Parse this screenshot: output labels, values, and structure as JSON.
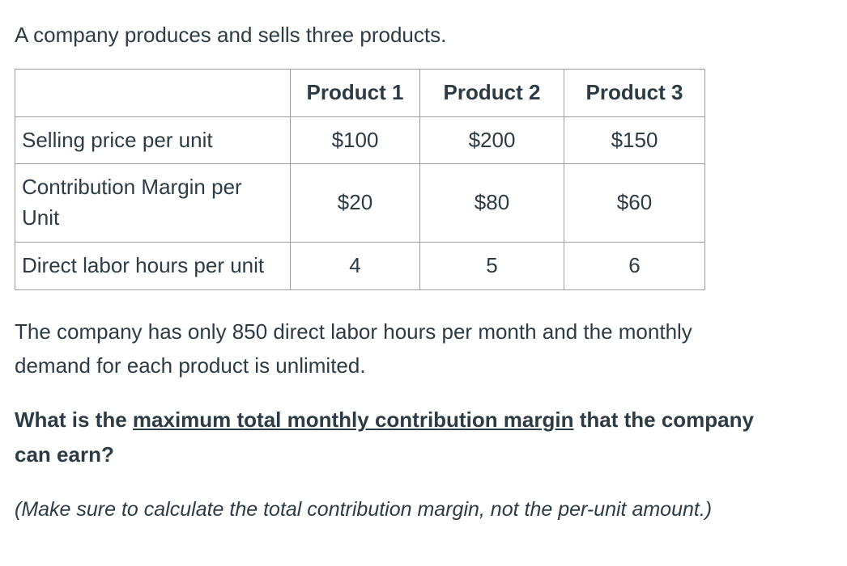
{
  "colors": {
    "text": "#2d3b45",
    "table_border": "#9e9e9e",
    "background": "#ffffff"
  },
  "intro": "A company produces and sells three products.",
  "table": {
    "headers": [
      "",
      "Product 1",
      "Product 2",
      "Product 3"
    ],
    "rows": [
      {
        "label": "Selling price per unit",
        "values": [
          "$100",
          "$200",
          "$150"
        ]
      },
      {
        "label": "Contribution Margin per Unit",
        "values": [
          "$20",
          "$80",
          "$60"
        ]
      },
      {
        "label": "Direct labor hours per unit",
        "values": [
          "4",
          "5",
          "6"
        ]
      }
    ]
  },
  "constraint": "The company has only 850 direct labor hours per month and the monthly demand for each product is unlimited.",
  "question": {
    "prefix": "What is the ",
    "underlined": "maximum total monthly contribution margin",
    "suffix": " that the company can earn?"
  },
  "note": "(Make sure to calculate the total contribution margin, not the per-unit amount.)"
}
